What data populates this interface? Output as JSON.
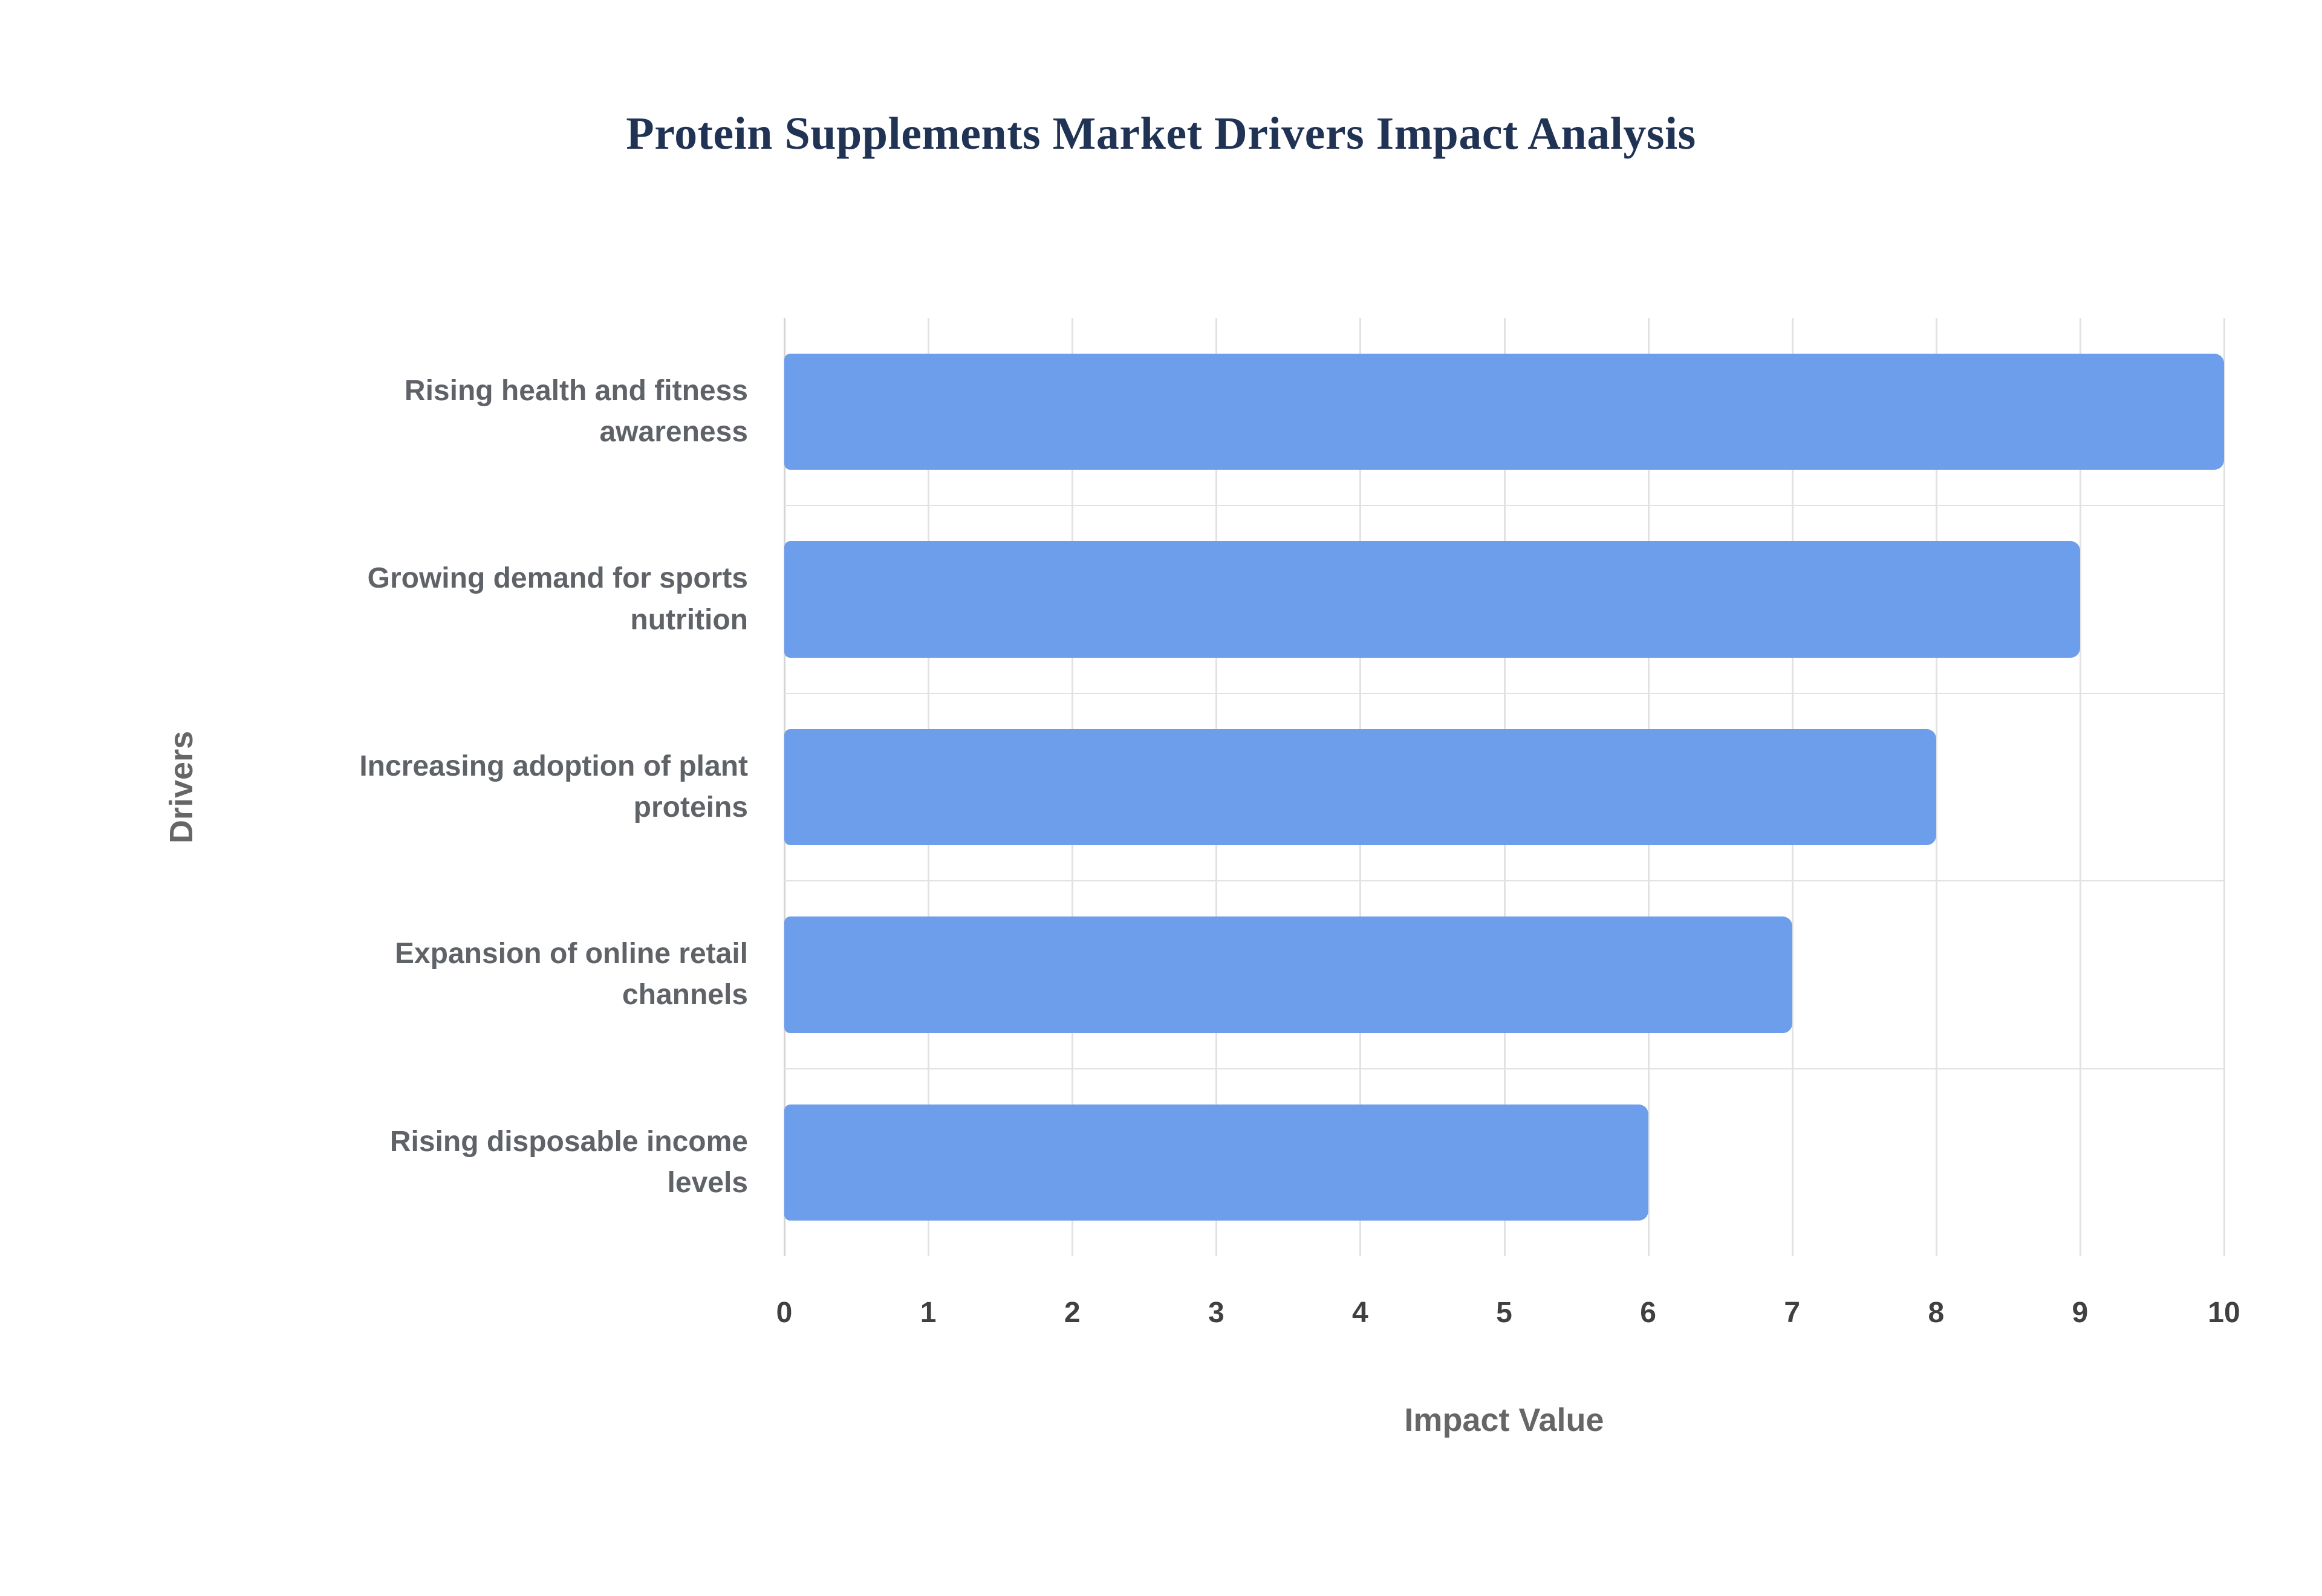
{
  "chart_data": {
    "type": "bar",
    "orientation": "horizontal",
    "title": "Protein Supplements Market Drivers Impact Analysis",
    "xlabel": "Impact Value",
    "ylabel": "Drivers",
    "categories": [
      "Rising health and fitness awareness",
      "Growing demand for sports nutrition",
      "Increasing adoption of plant proteins",
      "Expansion of online retail channels",
      "Rising disposable income levels"
    ],
    "categories_wrapped": [
      "Rising health and fitness\nawareness",
      "Growing demand for sports\nnutrition",
      "Increasing adoption of plant\nproteins",
      "Expansion of online retail\nchannels",
      "Rising disposable income\nlevels"
    ],
    "values": [
      10,
      9,
      8,
      7,
      6
    ],
    "xlim": [
      0,
      10
    ],
    "xticks": [
      0,
      1,
      2,
      3,
      4,
      5,
      6,
      7,
      8,
      9,
      10
    ],
    "grid": true,
    "legend": "none",
    "colors": {
      "bar": "#6D9EEB",
      "title": "#203354",
      "axis_title": "#666666",
      "category_label": "#5f6368",
      "tick_label": "#404040",
      "gridline": "#e2e2e2",
      "axis_line": "#d4d4d4",
      "background": "#ffffff"
    }
  }
}
